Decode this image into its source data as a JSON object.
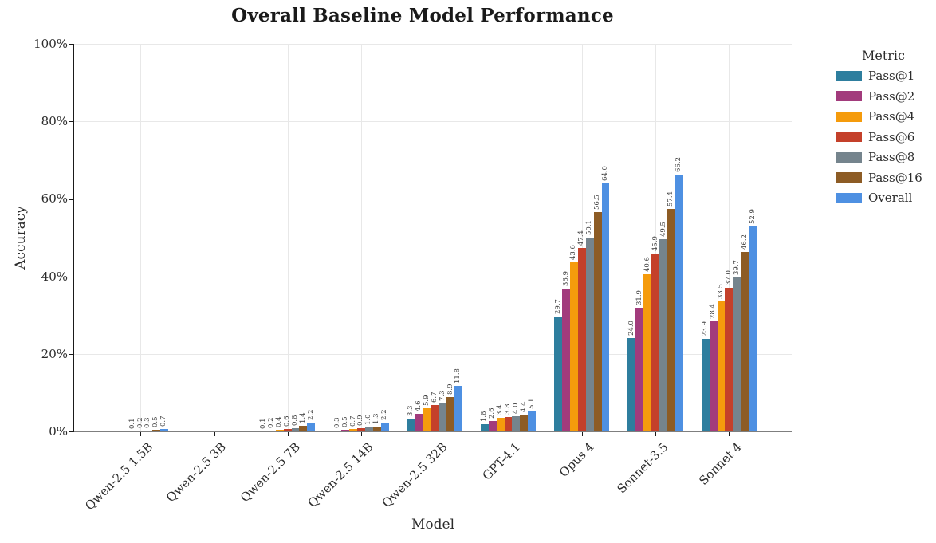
{
  "title": "Overall Baseline Model Performance",
  "chart_data": {
    "type": "bar",
    "title": "Overall Baseline Model Performance",
    "xlabel": "Model",
    "ylabel": "Accuracy",
    "ylim": [
      0,
      100
    ],
    "yticks": [
      0,
      20,
      40,
      60,
      80,
      100
    ],
    "ytick_suffix": "%",
    "grid": true,
    "legend_title": "Metric",
    "legend_position": "right",
    "bar_labels": true,
    "bar_label_rotation": 90,
    "categories": [
      "Qwen-2.5 1.5B",
      "Qwen-2.5 3B",
      "Qwen-2.5 7B",
      "Qwen-2.5 14B",
      "Qwen-2.5 32B",
      "GPT-4.1",
      "Opus 4",
      "Sonnet-3.5",
      "Sonnet 4"
    ],
    "series": [
      {
        "name": "Pass@1",
        "color": "#2e7e9e",
        "values": [
          0.0,
          0.0,
          0.1,
          0.3,
          3.3,
          1.8,
          29.7,
          24.0,
          23.9
        ]
      },
      {
        "name": "Pass@2",
        "color": "#a23b7c",
        "values": [
          0.0,
          0.0,
          0.2,
          0.5,
          4.6,
          2.6,
          36.9,
          31.9,
          28.4
        ]
      },
      {
        "name": "Pass@4",
        "color": "#f59b0c",
        "values": [
          0.1,
          0.0,
          0.4,
          0.7,
          5.9,
          3.4,
          43.6,
          40.6,
          33.5
        ]
      },
      {
        "name": "Pass@6",
        "color": "#c4402a",
        "values": [
          0.2,
          0.0,
          0.6,
          0.9,
          6.7,
          3.8,
          47.4,
          45.9,
          37.0
        ]
      },
      {
        "name": "Pass@8",
        "color": "#75848d",
        "values": [
          0.3,
          0.0,
          0.8,
          1.0,
          7.3,
          4.0,
          50.1,
          49.5,
          39.7
        ]
      },
      {
        "name": "Pass@16",
        "color": "#8d5c25",
        "values": [
          0.5,
          0.0,
          1.4,
          1.3,
          8.9,
          4.4,
          56.5,
          57.4,
          46.2
        ]
      },
      {
        "name": "Overall",
        "color": "#4e90e2",
        "values": [
          0.7,
          0.0,
          2.2,
          2.2,
          11.8,
          5.1,
          64.0,
          66.2,
          52.9
        ]
      }
    ]
  }
}
